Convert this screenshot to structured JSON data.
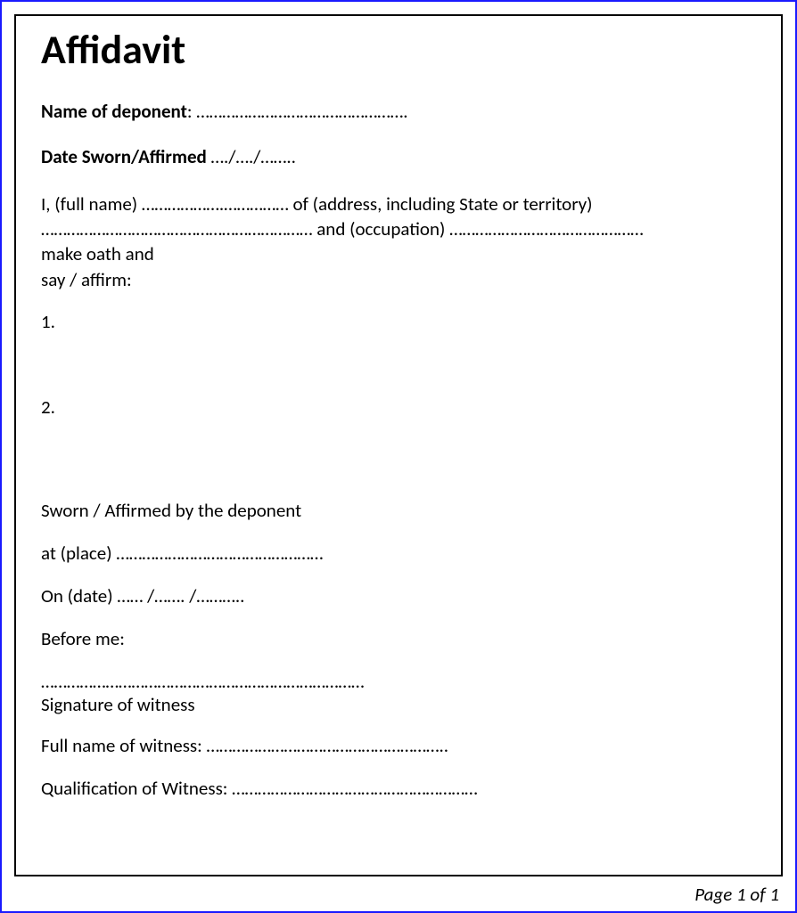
{
  "frame": {
    "outer_border_color": "#1a1aff",
    "inner_border_color": "#000000",
    "background_color": "#ffffff"
  },
  "typography": {
    "title_fontsize": 46,
    "body_fontsize": 21,
    "title_weight": 700,
    "label_weight": 700,
    "font_family": "Calibri"
  },
  "title": "Affidavit",
  "deponent": {
    "label": "Name of deponent",
    "colon": ": ",
    "blank": "…………………………………………."
  },
  "date_sworn": {
    "label": "Date Sworn/Affirmed",
    "blank": " …./…./…….."
  },
  "declaration": {
    "part1": "I, (full name) ……………….…………… of (address, including State or territory) ……………………………………………………… and (occupation) ………………………………………",
    "part2": "make oath and",
    "part3": "say / affirm:"
  },
  "items": {
    "one": "1.",
    "two": "2."
  },
  "sworn_by": "Sworn / Affirmed by the deponent",
  "at_place": "at (place) …………………………………………",
  "on_date": "On (date) …… /……. /………..",
  "before_me": "Before me:",
  "signature": {
    "line": "…………………………………………………………………",
    "label": "Signature of witness"
  },
  "full_name_witness": "Full name of witness:       ………………………………………………..",
  "qualification_witness": "Qualification of Witness: …………………………………………………",
  "page_number": "Page 1 of 1"
}
